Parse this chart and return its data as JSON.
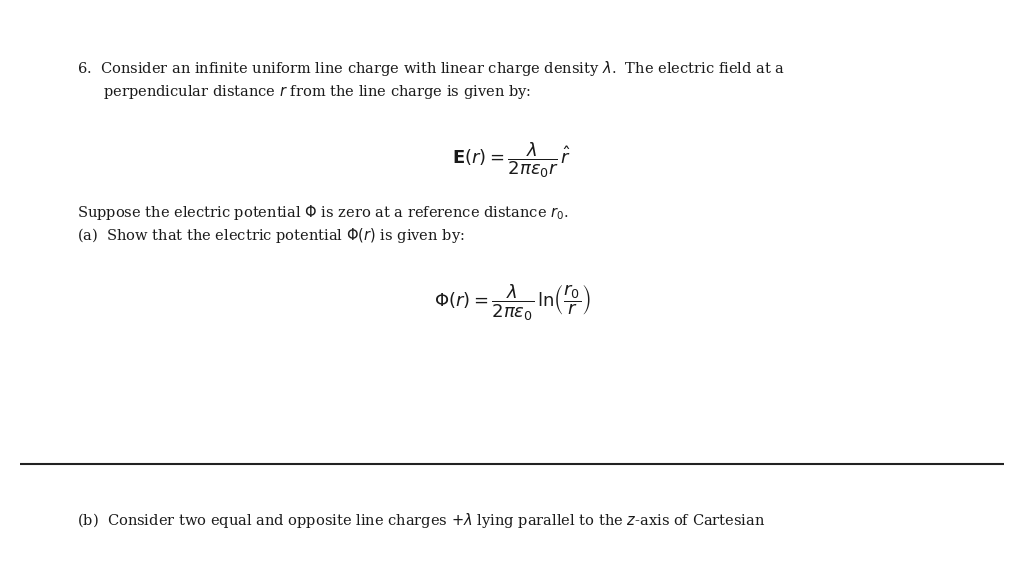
{
  "background_color": "#ffffff",
  "text_color": "#1a1a1a",
  "line_color": "#222222",
  "figsize": [
    10.24,
    5.62
  ],
  "dpi": 100,
  "line1": "6.  Consider an infinite uniform line charge with linear charge density $\\lambda$.  The electric field at a",
  "line2": "perpendicular distance $r$ from the line charge is given by:",
  "eq1": "$\\mathbf{E}(r) = \\dfrac{\\lambda}{2\\pi\\epsilon_0 r}\\,\\hat{r}$",
  "line3": "Suppose the electric potential $\\Phi$ is zero at a reference distance $r_0$.",
  "line4": "(a)  Show that the electric potential $\\Phi(r)$ is given by:",
  "eq2": "$\\Phi(r) = \\dfrac{\\lambda}{2\\pi\\epsilon_0}\\,\\ln\\!\\left(\\dfrac{r_0}{r}\\right)$",
  "bottom_text": "(b)  Consider two equal and opposite line charges $+\\lambda$ lying parallel to the $z$-axis of Cartesian"
}
